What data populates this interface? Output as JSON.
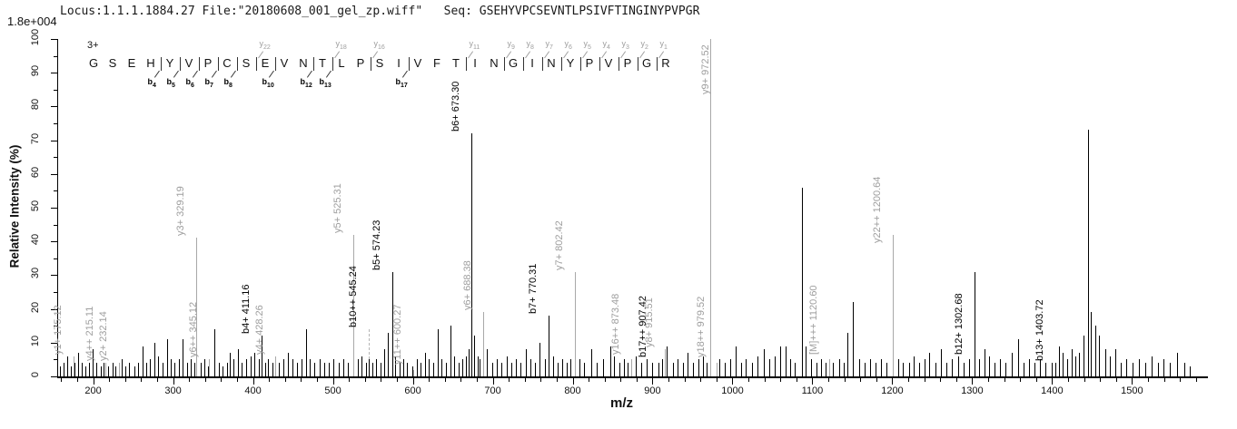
{
  "header": {
    "title_line": "Locus:1.1.1.1884.27 File:\"20180608_001_gel_zp.wiff\"   Seq: GSEHYVPCSEVNTLPSIVFTINGINYPVPGR"
  },
  "colors": {
    "y_series": "#9e9e9e",
    "y_line": "#a8a8a8",
    "b_series": "#000000",
    "axis": "#000000"
  },
  "chart_data": {
    "type": "bar",
    "title": "Locus:1.1.1.1884.27 File:\"20180608_001_gel_zp.wiff\"   Seq: GSEHYVPCSEVNTLPSIVFTINGINYPVPGR",
    "xlabel": "m/z",
    "ylabel": "Relative  Intensity (%)",
    "y_top_label": "1.8e+004",
    "xlim": [
      155,
      1595
    ],
    "ylim": [
      0,
      100
    ],
    "x_ticks": [
      200,
      300,
      400,
      500,
      600,
      700,
      800,
      900,
      1000,
      1100,
      1200,
      1300,
      1400,
      1500
    ],
    "x_minor_step": 20,
    "y_ticks": [
      0,
      10,
      20,
      30,
      40,
      50,
      60,
      70,
      80,
      90,
      100
    ],
    "y_minor_step": 5,
    "grid": false,
    "legend": "none",
    "precursor_charge": "3+",
    "peptide": "GSEHYVPCSEVNTLPSIVFTINGINYPVPGR",
    "fragments": [
      {
        "after": 4,
        "b": "b4"
      },
      {
        "after": 5,
        "b": "b5"
      },
      {
        "after": 6,
        "b": "b6"
      },
      {
        "after": 7,
        "b": "b7"
      },
      {
        "after": 8,
        "b": "b8"
      },
      {
        "after": 9,
        "y": "y22"
      },
      {
        "after": 10,
        "b": "b10"
      },
      {
        "after": 12,
        "b": "b12"
      },
      {
        "after": 13,
        "b": "b13",
        "y": "y18"
      },
      {
        "after": 15,
        "y": "y16"
      },
      {
        "after": 17,
        "b": "b17"
      },
      {
        "after": 20,
        "y": "y11"
      },
      {
        "after": 22,
        "y": "y9"
      },
      {
        "after": 23,
        "y": "y8"
      },
      {
        "after": 24,
        "y": "y7"
      },
      {
        "after": 25,
        "y": "y6"
      },
      {
        "after": 26,
        "y": "y5"
      },
      {
        "after": 27,
        "y": "y4"
      },
      {
        "after": 28,
        "y": "y3"
      },
      {
        "after": 29,
        "y": "y2"
      },
      {
        "after": 30,
        "y": "y1"
      }
    ],
    "labeled_peaks": [
      {
        "mz": 175.12,
        "intensity": 6,
        "series": "y",
        "label": "y1+ 175.12"
      },
      {
        "mz": 215.11,
        "intensity": 4,
        "series": "y",
        "label": "y4++ 215.11"
      },
      {
        "mz": 232.14,
        "intensity": 4,
        "series": "y",
        "label": "y2+ 232.14"
      },
      {
        "mz": 329.19,
        "intensity": 41,
        "series": "y",
        "label": "y3+ 329.19"
      },
      {
        "mz": 345.12,
        "intensity": 5,
        "series": "y",
        "label": "y6++ 345.12"
      },
      {
        "mz": 411.16,
        "intensity": 12,
        "series": "b",
        "label": "b4+ 411.16"
      },
      {
        "mz": 428.26,
        "intensity": 6,
        "series": "y",
        "label": "y4+ 428.26"
      },
      {
        "mz": 525.31,
        "intensity": 42,
        "series": "y",
        "label": "y5+ 525.31"
      },
      {
        "mz": 545.24,
        "intensity": 5,
        "series": "b",
        "label": "b10++ 545.24",
        "label_anchor": 14,
        "dashed_leader": true
      },
      {
        "mz": 574.23,
        "intensity": 31,
        "series": "b",
        "label": "b5+ 574.23"
      },
      {
        "mz": 600.27,
        "intensity": 2,
        "series": "y",
        "label": "y11++ 600.27",
        "label_anchor": 3
      },
      {
        "mz": 673.3,
        "intensity": 72,
        "series": "b",
        "label": "b6+ 673.30"
      },
      {
        "mz": 688.38,
        "intensity": 19,
        "series": "y",
        "label": "y6+ 688.38"
      },
      {
        "mz": 770.31,
        "intensity": 18,
        "series": "b",
        "label": "b7+ 770.31"
      },
      {
        "mz": 802.42,
        "intensity": 31,
        "series": "y",
        "label": "y7+ 802.42"
      },
      {
        "mz": 873.48,
        "intensity": 5,
        "series": "y",
        "label": "y16++ 873.48",
        "label_anchor": 6
      },
      {
        "mz": 907.42,
        "intensity": 4,
        "series": "b",
        "label": "b17++ 907.42",
        "label_anchor": 5
      },
      {
        "mz": 915.51,
        "intensity": 8,
        "series": "y",
        "label": "y8+ 915.51"
      },
      {
        "mz": 972.52,
        "intensity": 100,
        "series": "y",
        "label": "y9+ 972.52",
        "label_anchor": 83,
        "label_side": "right"
      },
      {
        "mz": 979.52,
        "intensity": 4,
        "series": "y",
        "label": "y18++ 979.52",
        "label_anchor": 5
      },
      {
        "mz": 1120.6,
        "intensity": 5,
        "series": "y",
        "label": "[M]+++ 1120.60",
        "label_anchor": 6
      },
      {
        "mz": 1200.64,
        "intensity": 42,
        "series": "y",
        "label": "y22++ 1200.64",
        "label_anchor": 39
      },
      {
        "mz": 1302.68,
        "intensity": 31,
        "series": "b",
        "label": "b12+ 1302.68",
        "label_anchor": 6
      },
      {
        "mz": 1403.72,
        "intensity": 4,
        "series": "b",
        "label": "b13+ 1403.72"
      }
    ],
    "unlabeled_peaks": [
      [
        158,
        3
      ],
      [
        163,
        4
      ],
      [
        167,
        6
      ],
      [
        172,
        3
      ],
      [
        177,
        4
      ],
      [
        181,
        7
      ],
      [
        186,
        4
      ],
      [
        190,
        3
      ],
      [
        195,
        4
      ],
      [
        199,
        8
      ],
      [
        204,
        4
      ],
      [
        209,
        3
      ],
      [
        213,
        4
      ],
      [
        219,
        3
      ],
      [
        224,
        4
      ],
      [
        228,
        3
      ],
      [
        236,
        5
      ],
      [
        240,
        3
      ],
      [
        245,
        4
      ],
      [
        251,
        3
      ],
      [
        256,
        4
      ],
      [
        262,
        9
      ],
      [
        266,
        4
      ],
      [
        271,
        5
      ],
      [
        276,
        10
      ],
      [
        281,
        6
      ],
      [
        287,
        4
      ],
      [
        292,
        11
      ],
      [
        297,
        5
      ],
      [
        302,
        4
      ],
      [
        307,
        5
      ],
      [
        312,
        11
      ],
      [
        317,
        4
      ],
      [
        322,
        5
      ],
      [
        326,
        4
      ],
      [
        334,
        4
      ],
      [
        339,
        5
      ],
      [
        344,
        3
      ],
      [
        351,
        14
      ],
      [
        357,
        4
      ],
      [
        362,
        3
      ],
      [
        367,
        4
      ],
      [
        371,
        7
      ],
      [
        376,
        5
      ],
      [
        381,
        8
      ],
      [
        386,
        4
      ],
      [
        391,
        5
      ],
      [
        397,
        6
      ],
      [
        402,
        7
      ],
      [
        407,
        5
      ],
      [
        415,
        4
      ],
      [
        419,
        5
      ],
      [
        424,
        4
      ],
      [
        432,
        4
      ],
      [
        438,
        5
      ],
      [
        444,
        7
      ],
      [
        449,
        5
      ],
      [
        455,
        4
      ],
      [
        461,
        5
      ],
      [
        466,
        14
      ],
      [
        471,
        5
      ],
      [
        477,
        4
      ],
      [
        483,
        5
      ],
      [
        489,
        4
      ],
      [
        495,
        4
      ],
      [
        501,
        5
      ],
      [
        507,
        4
      ],
      [
        513,
        5
      ],
      [
        519,
        4
      ],
      [
        531,
        5
      ],
      [
        536,
        6
      ],
      [
        541,
        4
      ],
      [
        549,
        4
      ],
      [
        554,
        5
      ],
      [
        559,
        4
      ],
      [
        564,
        8
      ],
      [
        569,
        13
      ],
      [
        578,
        6
      ],
      [
        583,
        4
      ],
      [
        588,
        5
      ],
      [
        593,
        4
      ],
      [
        599,
        3
      ],
      [
        605,
        5
      ],
      [
        610,
        4
      ],
      [
        615,
        7
      ],
      [
        620,
        5
      ],
      [
        626,
        4
      ],
      [
        631,
        14
      ],
      [
        636,
        5
      ],
      [
        641,
        4
      ],
      [
        647,
        15
      ],
      [
        652,
        6
      ],
      [
        657,
        4
      ],
      [
        662,
        5
      ],
      [
        666,
        6
      ],
      [
        670,
        8
      ],
      [
        677,
        12
      ],
      [
        681,
        6
      ],
      [
        684,
        5
      ],
      [
        693,
        8
      ],
      [
        699,
        4
      ],
      [
        705,
        5
      ],
      [
        711,
        4
      ],
      [
        717,
        6
      ],
      [
        723,
        4
      ],
      [
        729,
        5
      ],
      [
        735,
        4
      ],
      [
        741,
        8
      ],
      [
        747,
        5
      ],
      [
        753,
        4
      ],
      [
        759,
        10
      ],
      [
        765,
        5
      ],
      [
        776,
        6
      ],
      [
        781,
        4
      ],
      [
        787,
        5
      ],
      [
        793,
        4
      ],
      [
        797,
        5
      ],
      [
        808,
        5
      ],
      [
        814,
        4
      ],
      [
        823,
        8
      ],
      [
        830,
        4
      ],
      [
        838,
        5
      ],
      [
        847,
        9
      ],
      [
        852,
        6
      ],
      [
        858,
        4
      ],
      [
        864,
        5
      ],
      [
        869,
        4
      ],
      [
        879,
        6
      ],
      [
        886,
        4
      ],
      [
        893,
        5
      ],
      [
        899,
        4
      ],
      [
        912,
        5
      ],
      [
        918,
        9
      ],
      [
        925,
        4
      ],
      [
        931,
        5
      ],
      [
        938,
        4
      ],
      [
        944,
        7
      ],
      [
        951,
        4
      ],
      [
        957,
        5
      ],
      [
        963,
        6
      ],
      [
        968,
        4
      ],
      [
        984,
        5
      ],
      [
        990,
        4
      ],
      [
        997,
        5
      ],
      [
        1004,
        9
      ],
      [
        1011,
        4
      ],
      [
        1017,
        5
      ],
      [
        1024,
        4
      ],
      [
        1031,
        6
      ],
      [
        1039,
        8
      ],
      [
        1046,
        5
      ],
      [
        1053,
        6
      ],
      [
        1060,
        9
      ],
      [
        1066,
        9
      ],
      [
        1072,
        5
      ],
      [
        1078,
        4
      ],
      [
        1087,
        56
      ],
      [
        1092,
        9
      ],
      [
        1098,
        5
      ],
      [
        1105,
        4
      ],
      [
        1111,
        5
      ],
      [
        1116,
        4
      ],
      [
        1126,
        4
      ],
      [
        1133,
        5
      ],
      [
        1139,
        4
      ],
      [
        1144,
        13
      ],
      [
        1151,
        22
      ],
      [
        1158,
        5
      ],
      [
        1165,
        4
      ],
      [
        1172,
        5
      ],
      [
        1179,
        4
      ],
      [
        1186,
        5
      ],
      [
        1193,
        4
      ],
      [
        1207,
        5
      ],
      [
        1213,
        4
      ],
      [
        1221,
        4
      ],
      [
        1227,
        6
      ],
      [
        1234,
        4
      ],
      [
        1240,
        5
      ],
      [
        1246,
        7
      ],
      [
        1254,
        4
      ],
      [
        1261,
        8
      ],
      [
        1268,
        4
      ],
      [
        1275,
        5
      ],
      [
        1282,
        6
      ],
      [
        1289,
        4
      ],
      [
        1296,
        5
      ],
      [
        1309,
        5
      ],
      [
        1315,
        8
      ],
      [
        1321,
        6
      ],
      [
        1328,
        4
      ],
      [
        1335,
        5
      ],
      [
        1342,
        4
      ],
      [
        1350,
        7
      ],
      [
        1357,
        11
      ],
      [
        1364,
        4
      ],
      [
        1371,
        5
      ],
      [
        1378,
        4
      ],
      [
        1385,
        5
      ],
      [
        1392,
        4
      ],
      [
        1399,
        4
      ],
      [
        1408,
        9
      ],
      [
        1413,
        7
      ],
      [
        1419,
        5
      ],
      [
        1424,
        8
      ],
      [
        1429,
        6
      ],
      [
        1434,
        7
      ],
      [
        1439,
        12
      ],
      [
        1445,
        73
      ],
      [
        1448,
        19
      ],
      [
        1454,
        15
      ],
      [
        1459,
        12
      ],
      [
        1466,
        8
      ],
      [
        1472,
        6
      ],
      [
        1479,
        8
      ],
      [
        1486,
        4
      ],
      [
        1493,
        5
      ],
      [
        1501,
        4
      ],
      [
        1509,
        5
      ],
      [
        1517,
        4
      ],
      [
        1525,
        6
      ],
      [
        1532,
        4
      ],
      [
        1539,
        5
      ],
      [
        1547,
        4
      ],
      [
        1556,
        7
      ],
      [
        1565,
        4
      ],
      [
        1572,
        3
      ]
    ]
  }
}
